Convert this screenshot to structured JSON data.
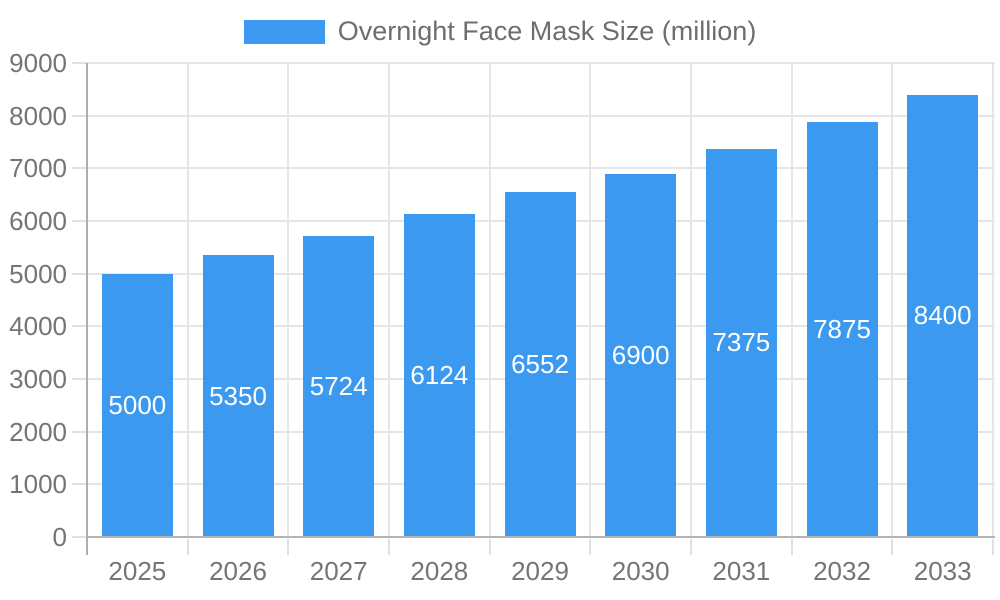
{
  "chart_data": {
    "type": "bar",
    "title": "Overnight Face Mask Size (million)",
    "categories": [
      "2025",
      "2026",
      "2027",
      "2028",
      "2029",
      "2030",
      "2031",
      "2032",
      "2033"
    ],
    "values": [
      5000,
      5350,
      5724,
      6124,
      6552,
      6900,
      7375,
      7875,
      8400
    ],
    "xlabel": "",
    "ylabel": "",
    "ylim": [
      0,
      9000
    ],
    "ytick_step": 1000,
    "yticks": [
      0,
      1000,
      2000,
      3000,
      4000,
      5000,
      6000,
      7000,
      8000,
      9000
    ],
    "grid": "horizontal and vertical light gray gridlines",
    "legend_position": "top-center",
    "value_labels": "white, centered vertically inside each bar",
    "colors": {
      "bar": "#3B99F0",
      "grid": "#E6E6E6",
      "tick": "#E0E0E0",
      "axis_line": "#ADADAD",
      "baseline": "#B3B3B3",
      "axis_text": "#757575",
      "title_text": "#6E6E6E",
      "value_label_text": "#FFFFFF",
      "background": "#FFFFFF"
    }
  }
}
